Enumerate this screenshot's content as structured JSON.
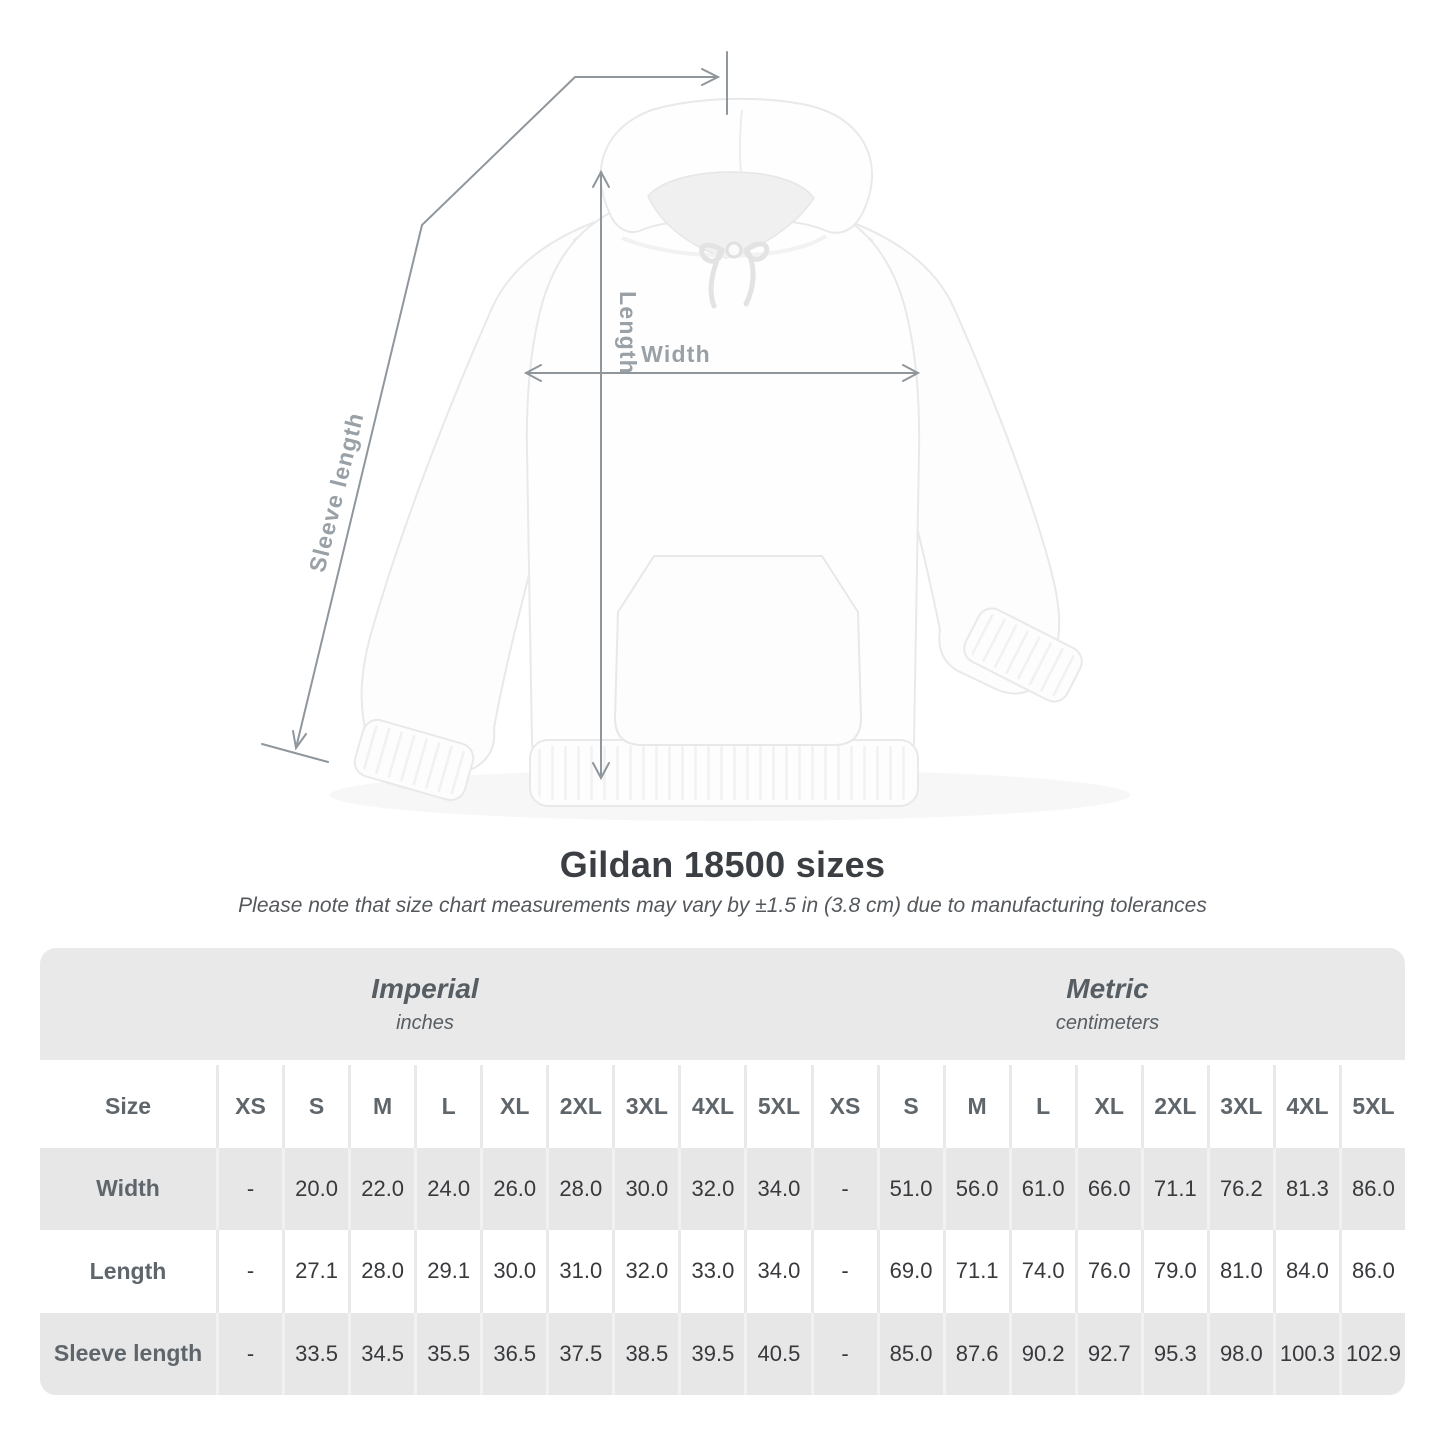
{
  "title": "Gildan 18500 sizes",
  "note": "Please note that size chart measurements may vary by ±1.5 in (3.8 cm) due to manufacturing tolerances",
  "figure": {
    "length_label": "Length",
    "width_label": "Width",
    "sleeve_label": "Sleeve length"
  },
  "table": {
    "imperial": {
      "label": "Imperial",
      "sublabel": "inches"
    },
    "metric": {
      "label": "Metric",
      "sublabel": "centimeters"
    },
    "size_col_header": "Size",
    "sizes": [
      "XS",
      "S",
      "M",
      "L",
      "XL",
      "2XL",
      "3XL",
      "4XL",
      "5XL"
    ],
    "rows": [
      {
        "label": "Width",
        "imperial": [
          "-",
          "20.0",
          "22.0",
          "24.0",
          "26.0",
          "28.0",
          "30.0",
          "32.0",
          "34.0"
        ],
        "metric": [
          "-",
          "51.0",
          "56.0",
          "61.0",
          "66.0",
          "71.1",
          "76.2",
          "81.3",
          "86.0"
        ]
      },
      {
        "label": "Length",
        "imperial": [
          "-",
          "27.1",
          "28.0",
          "29.1",
          "30.0",
          "31.0",
          "32.0",
          "33.0",
          "34.0"
        ],
        "metric": [
          "-",
          "69.0",
          "71.1",
          "74.0",
          "76.0",
          "79.0",
          "81.0",
          "84.0",
          "86.0"
        ]
      },
      {
        "label": "Sleeve length",
        "imperial": [
          "-",
          "33.5",
          "34.5",
          "35.5",
          "36.5",
          "37.5",
          "38.5",
          "39.5",
          "40.5"
        ],
        "metric": [
          "-",
          "85.0",
          "87.6",
          "90.2",
          "92.7",
          "95.3",
          "98.0",
          "100.3",
          "102.9"
        ]
      }
    ]
  },
  "colors": {
    "measure_line": "#8f969c",
    "measure_label": "#99a0a6",
    "title_text": "#3b3e42",
    "note_text": "#54585c",
    "table_band_gray": "#e9e9e9",
    "table_row_gray": "#e7e7e7",
    "header_text": "#5f666b",
    "value_text": "#37393c"
  }
}
